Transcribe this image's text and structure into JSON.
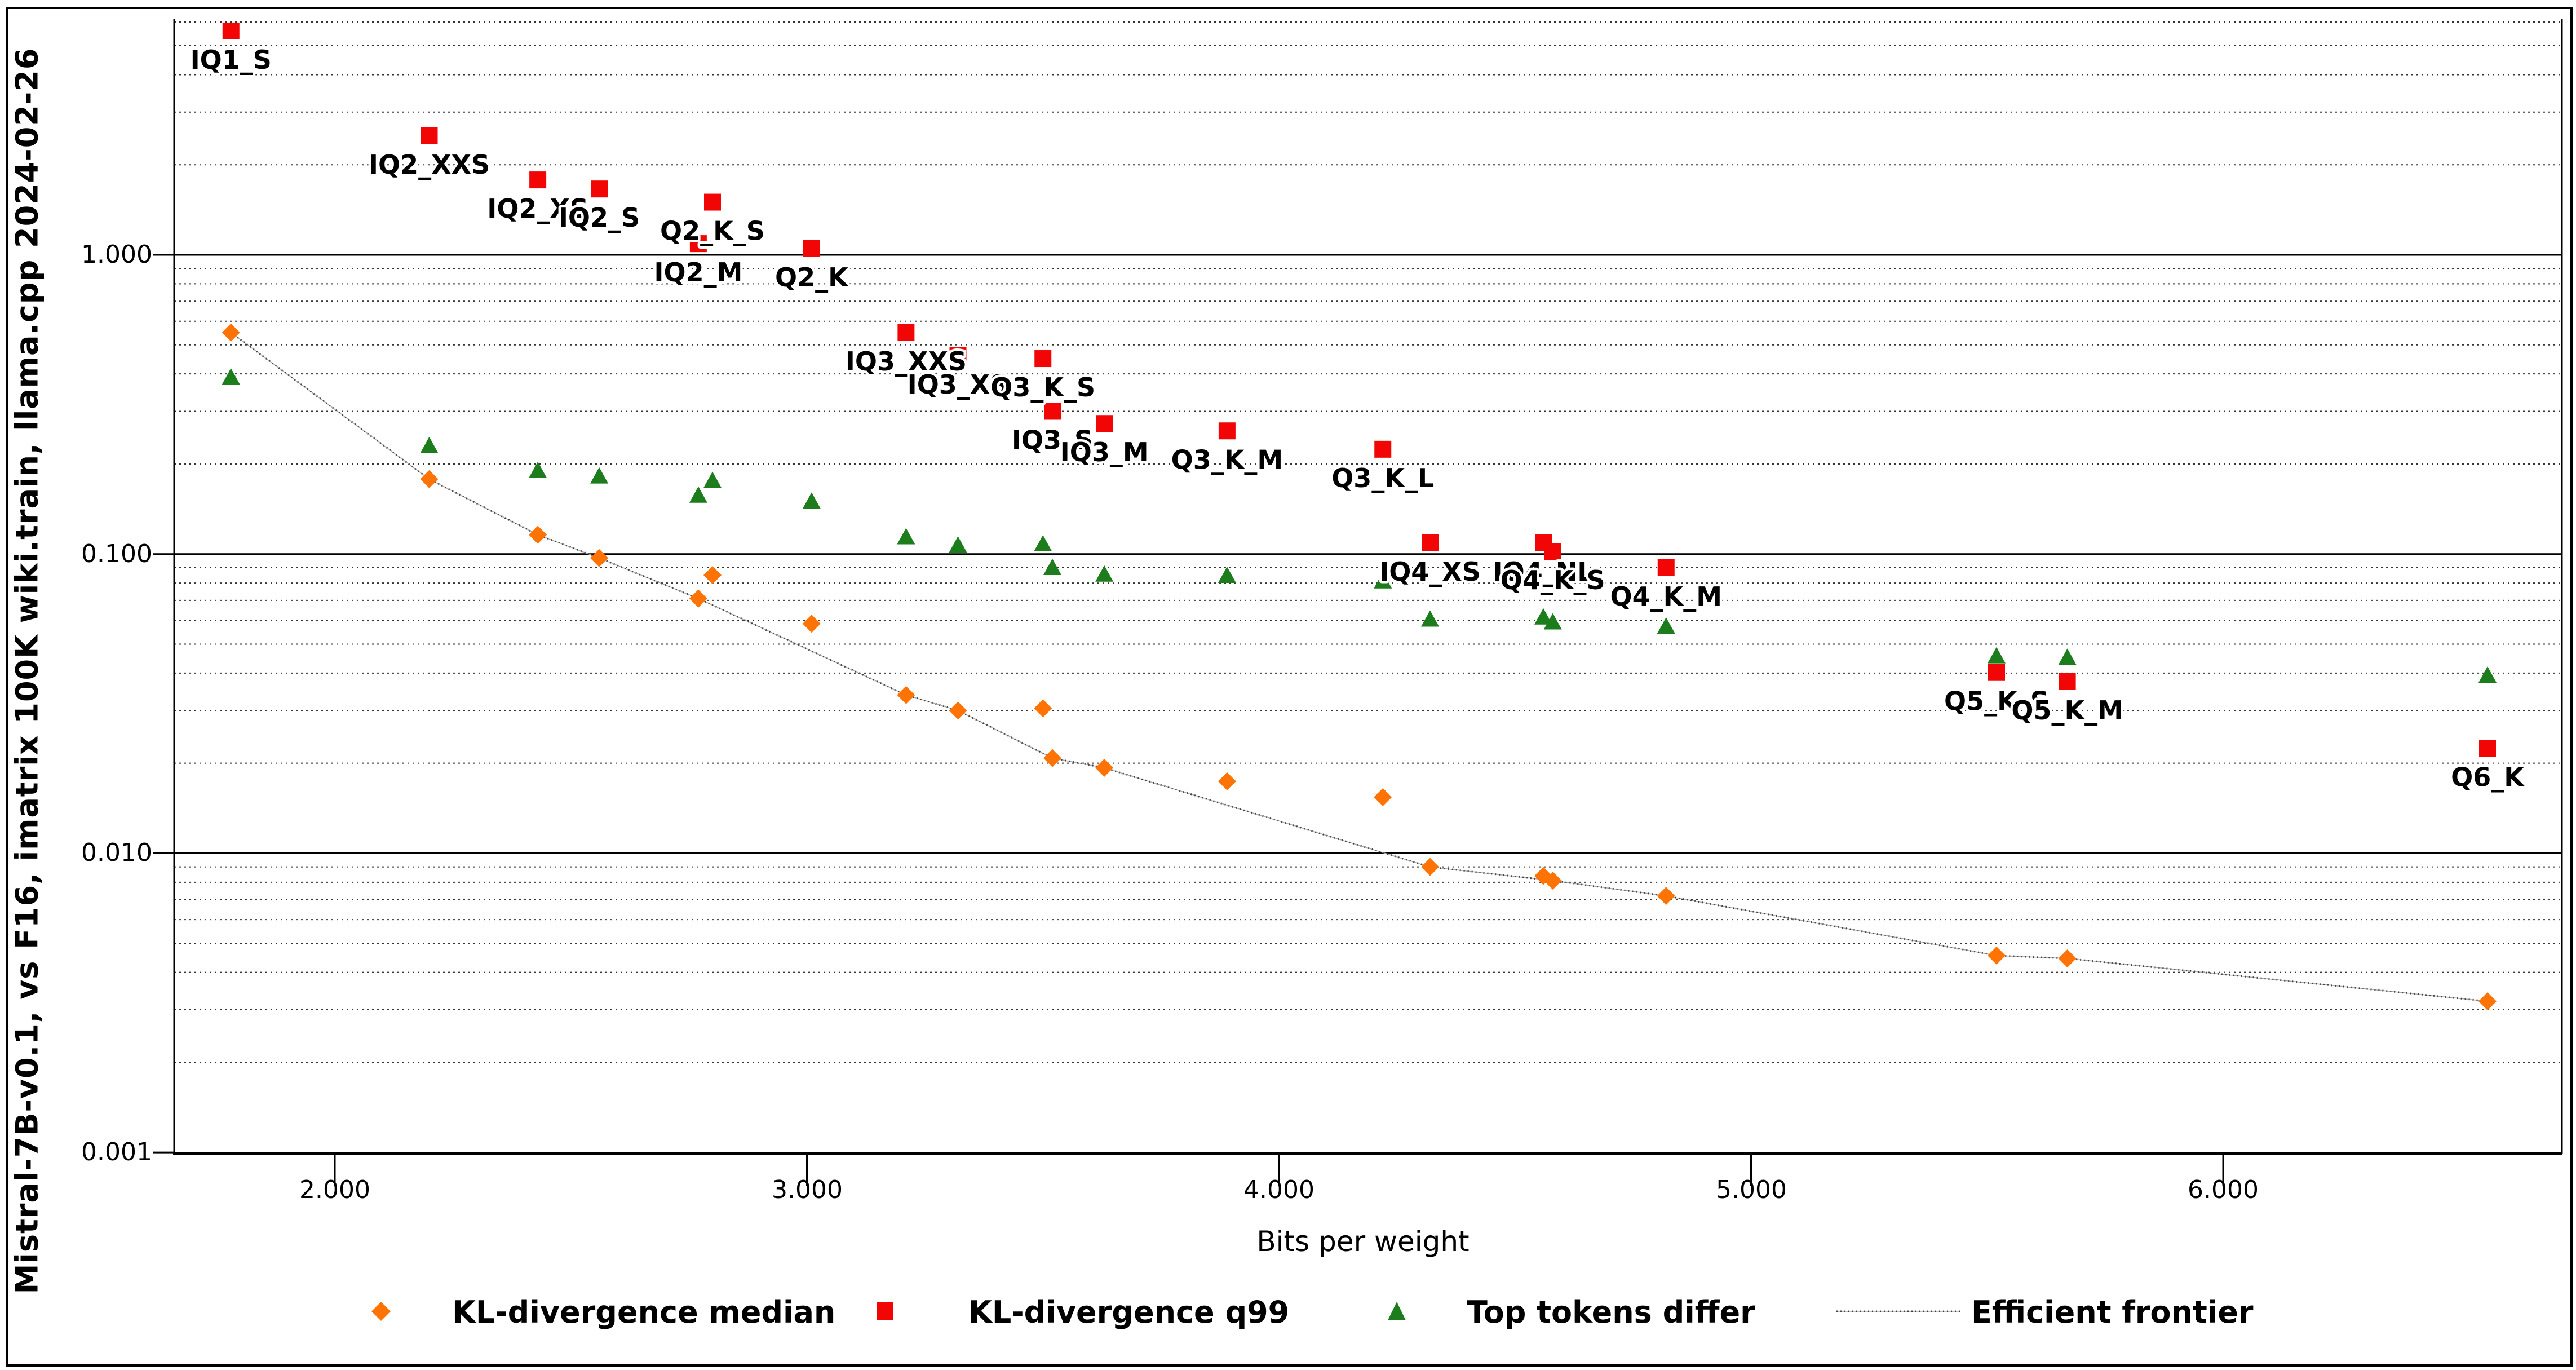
{
  "y_axis": {
    "title": "Mistral-7B-v0.1, vs F16, imatrix 100K wiki.train, llama.cpp 2024-02-26",
    "tick_labels": [
      "1.000",
      "0.100",
      "0.010",
      "0.001"
    ],
    "tick_values": [
      1,
      0.1,
      0.01,
      0.001
    ],
    "scale": "log10",
    "range": [
      0.001,
      6.5
    ]
  },
  "x_axis": {
    "title": "Bits per weight",
    "tick_labels": [
      "2.000",
      "3.000",
      "4.000",
      "5.000",
      "6.000"
    ],
    "tick_values": [
      2,
      3,
      4,
      5,
      6
    ],
    "range": [
      1.66,
      6.72
    ]
  },
  "legend": {
    "items": [
      {
        "label": "KL-divergence median",
        "marker": "diamond",
        "color": "#ff7305"
      },
      {
        "label": "KL-divergence q99",
        "marker": "square",
        "color": "#f20505"
      },
      {
        "label": "Top tokens differ",
        "marker": "triangle",
        "color": "#1d7d1d"
      },
      {
        "label": "Efficient frontier",
        "marker": "line",
        "color": "#444444"
      }
    ]
  },
  "chart_data": {
    "type": "scatter",
    "title": "",
    "xlabel": "Bits per weight",
    "ylabel": "Mistral-7B-v0.1, vs F16, imatrix 100K wiki.train, llama.cpp 2024-02-26",
    "y_scale": "log10",
    "xlim": [
      1.66,
      6.72
    ],
    "ylim": [
      0.001,
      6.5
    ],
    "grid": {
      "major_y": [
        1,
        0.1,
        0.01
      ],
      "minor_y_dotted": true,
      "vertical_gridlines": false
    },
    "quants": [
      {
        "name": "IQ1_S",
        "bits": 1.78,
        "kl_median": 0.55,
        "kl_q99": 5.6,
        "top_tokens_differ": 0.39
      },
      {
        "name": "IQ2_XXS",
        "bits": 2.2,
        "kl_median": 0.178,
        "kl_q99": 2.5,
        "top_tokens_differ": 0.23
      },
      {
        "name": "IQ2_XS",
        "bits": 2.43,
        "kl_median": 0.116,
        "kl_q99": 1.78,
        "top_tokens_differ": 0.19
      },
      {
        "name": "IQ2_S",
        "bits": 2.56,
        "kl_median": 0.097,
        "kl_q99": 1.66,
        "top_tokens_differ": 0.182
      },
      {
        "name": "IQ2_M",
        "bits": 2.77,
        "kl_median": 0.071,
        "kl_q99": 1.09,
        "top_tokens_differ": 0.157
      },
      {
        "name": "Q2_K_S",
        "bits": 2.8,
        "kl_median": 0.085,
        "kl_q99": 1.5,
        "top_tokens_differ": 0.176
      },
      {
        "name": "Q2_K",
        "bits": 3.01,
        "kl_median": 0.0585,
        "kl_q99": 1.05,
        "top_tokens_differ": 0.15
      },
      {
        "name": "IQ3_XXS",
        "bits": 3.21,
        "kl_median": 0.0338,
        "kl_q99": 0.55,
        "top_tokens_differ": 0.114
      },
      {
        "name": "IQ3_XS",
        "bits": 3.32,
        "kl_median": 0.03,
        "kl_q99": 0.46,
        "top_tokens_differ": 0.107
      },
      {
        "name": "Q3_K_S",
        "bits": 3.5,
        "kl_median": 0.0305,
        "kl_q99": 0.45,
        "top_tokens_differ": 0.108
      },
      {
        "name": "IQ3_S",
        "bits": 3.52,
        "kl_median": 0.0208,
        "kl_q99": 0.3,
        "top_tokens_differ": 0.09
      },
      {
        "name": "IQ3_M",
        "bits": 3.63,
        "kl_median": 0.0193,
        "kl_q99": 0.273,
        "top_tokens_differ": 0.0855
      },
      {
        "name": "Q3_K_M",
        "bits": 3.89,
        "kl_median": 0.0174,
        "kl_q99": 0.258,
        "top_tokens_differ": 0.0847
      },
      {
        "name": "Q3_K_L",
        "bits": 4.22,
        "kl_median": 0.0154,
        "kl_q99": 0.224,
        "top_tokens_differ": 0.0812
      },
      {
        "name": "IQ4_XS",
        "bits": 4.32,
        "kl_median": 0.009,
        "kl_q99": 0.109,
        "top_tokens_differ": 0.0605
      },
      {
        "name": "IQ4_NL",
        "bits": 4.56,
        "kl_median": 0.0084,
        "kl_q99": 0.109,
        "top_tokens_differ": 0.0615
      },
      {
        "name": "Q4_K_S",
        "bits": 4.58,
        "kl_median": 0.0081,
        "kl_q99": 0.102,
        "top_tokens_differ": 0.0592
      },
      {
        "name": "Q4_K_M",
        "bits": 4.82,
        "kl_median": 0.0072,
        "kl_q99": 0.09,
        "top_tokens_differ": 0.0573
      },
      {
        "name": "Q5_K_S",
        "bits": 5.52,
        "kl_median": 0.00455,
        "kl_q99": 0.0402,
        "top_tokens_differ": 0.0456
      },
      {
        "name": "Q5_K_M",
        "bits": 5.67,
        "kl_median": 0.00445,
        "kl_q99": 0.0375,
        "top_tokens_differ": 0.0451
      },
      {
        "name": "Q6_K",
        "bits": 6.56,
        "kl_median": 0.0032,
        "kl_q99": 0.0224,
        "top_tokens_differ": 0.0393
      }
    ],
    "series": [
      {
        "name": "KL-divergence median",
        "field": "kl_median",
        "marker": "diamond",
        "color": "#ff7305"
      },
      {
        "name": "KL-divergence q99",
        "field": "kl_q99",
        "marker": "square",
        "color": "#f20505",
        "point_labels": true
      },
      {
        "name": "Top tokens differ",
        "field": "top_tokens_differ",
        "marker": "triangle",
        "color": "#1d7d1d"
      },
      {
        "name": "Efficient frontier",
        "marker": "line",
        "color": "#444444",
        "through": [
          "IQ1_S",
          "IQ2_XXS",
          "IQ2_XS",
          "IQ2_S",
          "IQ2_M",
          "IQ3_XXS",
          "IQ3_XS",
          "IQ3_S",
          "IQ3_M",
          "IQ4_XS",
          "Q4_K_S",
          "Q4_K_M",
          "Q5_K_S",
          "Q5_K_M",
          "Q6_K"
        ]
      }
    ]
  }
}
